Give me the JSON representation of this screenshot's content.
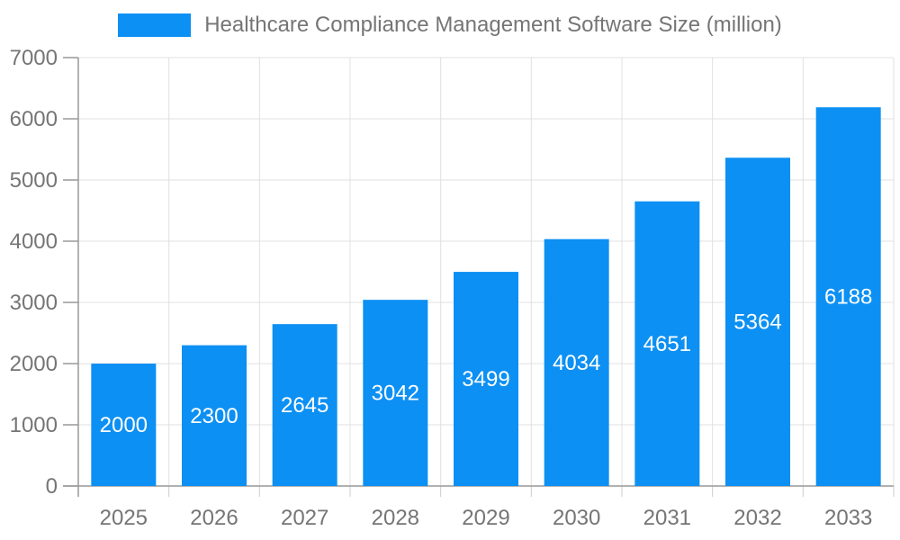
{
  "chart_data": {
    "type": "bar",
    "title": "Healthcare Compliance Management Software Size (million)",
    "legend_position": "top",
    "categories": [
      "2025",
      "2026",
      "2027",
      "2028",
      "2029",
      "2030",
      "2031",
      "2032",
      "2033"
    ],
    "values": [
      2000,
      2300,
      2645,
      3042,
      3499,
      4034,
      4651,
      5364,
      6188
    ],
    "y_ticks": [
      0,
      1000,
      2000,
      3000,
      4000,
      5000,
      6000,
      7000
    ],
    "ylim": [
      0,
      7000
    ],
    "xlabel": "",
    "ylabel": "",
    "grid": true,
    "bar_color": "#0D90F3",
    "value_label_color": "#FFFFFF",
    "axis_text_color": "#757575",
    "grid_color": "#E0E0E0",
    "axis_line_color": "#999999",
    "minor_tick_color": "#CCCCCC",
    "background": "#FFFFFF"
  }
}
